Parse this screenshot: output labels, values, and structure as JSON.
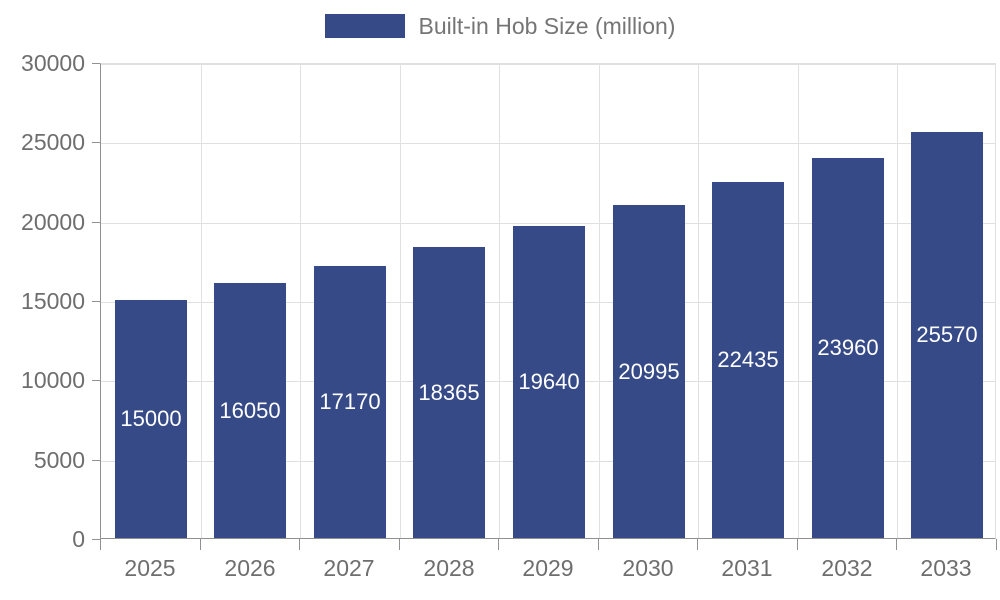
{
  "legend": {
    "label": "Built-in Hob Size (million)"
  },
  "chart_data": {
    "type": "bar",
    "title": "Built-in Hob Size (million)",
    "series_name": "Built-in Hob Size (million)",
    "categories": [
      "2025",
      "2026",
      "2027",
      "2028",
      "2029",
      "2030",
      "2031",
      "2032",
      "2033"
    ],
    "values": [
      15000,
      16050,
      17170,
      18365,
      19640,
      20995,
      22435,
      23960,
      25570
    ],
    "value_labels": [
      "15000",
      "16050",
      "17170",
      "18365",
      "19640",
      "20995",
      "22435",
      "23960",
      "25570"
    ],
    "xlabel": "",
    "ylabel": "",
    "ylim": [
      0,
      30000
    ],
    "ytick_interval": 5000,
    "ytick_labels": [
      "0",
      "5000",
      "10000",
      "15000",
      "20000",
      "25000",
      "30000"
    ],
    "grid": true,
    "legend_position": "top",
    "colors": {
      "bar": "#364a88",
      "bar_value_label": "#ffffff",
      "gridline": "#e0e0e0",
      "axis_line": "#909090",
      "axis_text": "#6e6e6e",
      "legend_text": "#757575"
    }
  }
}
